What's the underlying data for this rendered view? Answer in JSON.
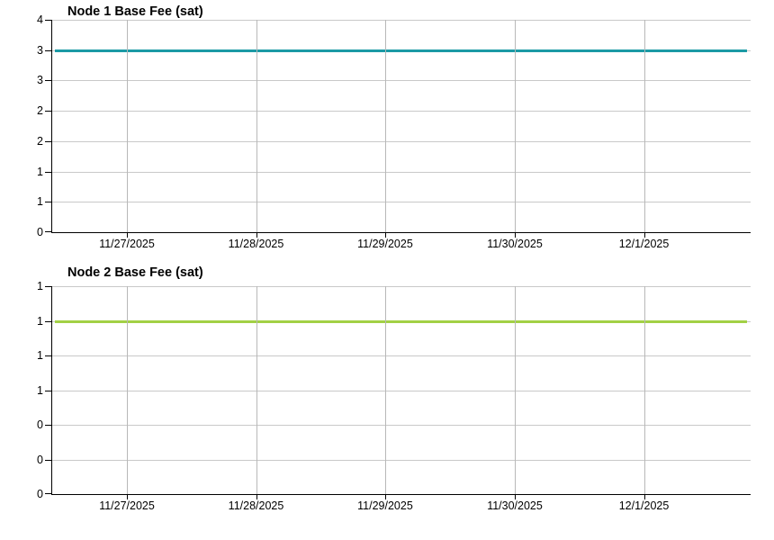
{
  "style": {
    "background": "#ffffff",
    "axis_color": "#000000",
    "text_color": "#000000",
    "hgrid_color": "#c9c9c9",
    "vgrid_color": "#b8b8b8"
  },
  "chart_data": [
    {
      "type": "line",
      "title": "Node 1 Base Fee (sat)",
      "xlabel": "",
      "ylabel": "",
      "grid": true,
      "legend": "none",
      "x_tick_labels": [
        "11/27/2025",
        "11/28/2025",
        "11/29/2025",
        "11/30/2025",
        "12/1/2025"
      ],
      "x_tick_positions_pct": [
        10.7,
        29.19,
        47.68,
        66.24,
        84.73
      ],
      "y_tick_labels_top_to_bottom": [
        "4",
        "3",
        "3",
        "2",
        "2",
        "1",
        "1",
        "0"
      ],
      "y_tick_values_top_to_bottom": [
        3.5,
        3,
        2.5,
        2,
        1.5,
        1,
        0.5,
        0
      ],
      "ylim": [
        0,
        3.5
      ],
      "series": [
        {
          "name": "Node 1 Base Fee",
          "unit": "sat",
          "constant_value": 3,
          "color": "#1b9aa5",
          "line_tick_index": 1
        }
      ]
    },
    {
      "type": "line",
      "title": "Node 2 Base Fee (sat)",
      "xlabel": "",
      "ylabel": "",
      "grid": true,
      "legend": "none",
      "x_tick_labels": [
        "11/27/2025",
        "11/28/2025",
        "11/29/2025",
        "11/30/2025",
        "12/1/2025"
      ],
      "x_tick_positions_pct": [
        10.7,
        29.19,
        47.68,
        66.24,
        84.73
      ],
      "y_tick_labels_top_to_bottom": [
        "1",
        "1",
        "1",
        "1",
        "0",
        "0",
        "0"
      ],
      "y_tick_values_top_to_bottom": [
        1.2,
        1.0,
        0.8,
        0.6,
        0.4,
        0.2,
        0
      ],
      "ylim": [
        0,
        1.2
      ],
      "series": [
        {
          "name": "Node 2 Base Fee",
          "unit": "sat",
          "constant_value": 1,
          "color": "#a2d045",
          "line_tick_index": 1
        }
      ]
    }
  ]
}
